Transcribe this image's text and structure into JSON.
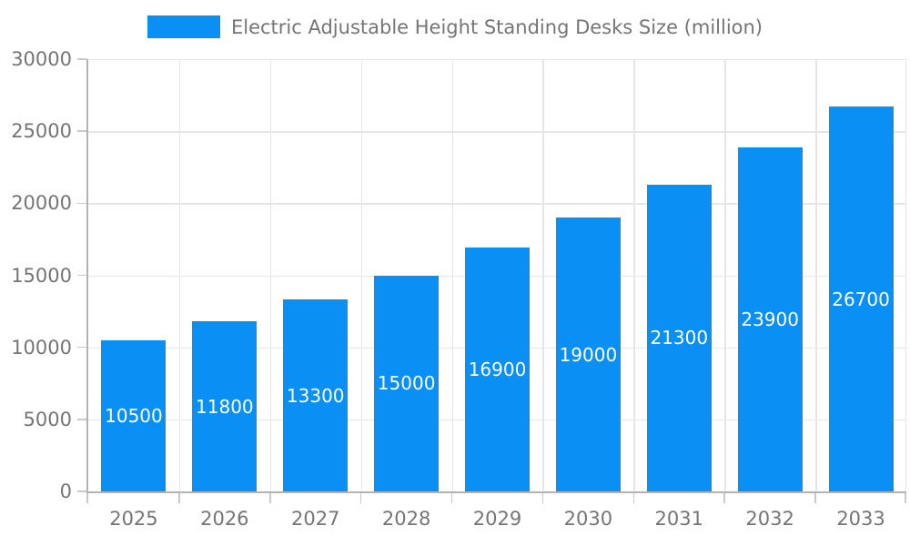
{
  "chart_data": {
    "type": "bar",
    "title": "Electric Adjustable Height Standing Desks Size (million)",
    "categories": [
      "2025",
      "2026",
      "2027",
      "2028",
      "2029",
      "2030",
      "2031",
      "2032",
      "2033"
    ],
    "values": [
      10500,
      11800,
      13300,
      15000,
      16900,
      19000,
      21300,
      23900,
      26700
    ],
    "y_ticks": [
      0,
      5000,
      10000,
      15000,
      20000,
      25000,
      30000
    ],
    "ylim": [
      0,
      30000
    ],
    "xlabel": "",
    "ylabel": "",
    "grid": true,
    "legend_position": "top-center",
    "value_labels": "inside-center",
    "colors": {
      "bar": "#0a8ff5",
      "value_label": "#ffffff",
      "axis_text": "#757575",
      "grid_line": "#e6e6e6",
      "axis_line": "#b3b3b3",
      "tick_mark": "#c9c9c9",
      "background": "#ffffff"
    }
  }
}
